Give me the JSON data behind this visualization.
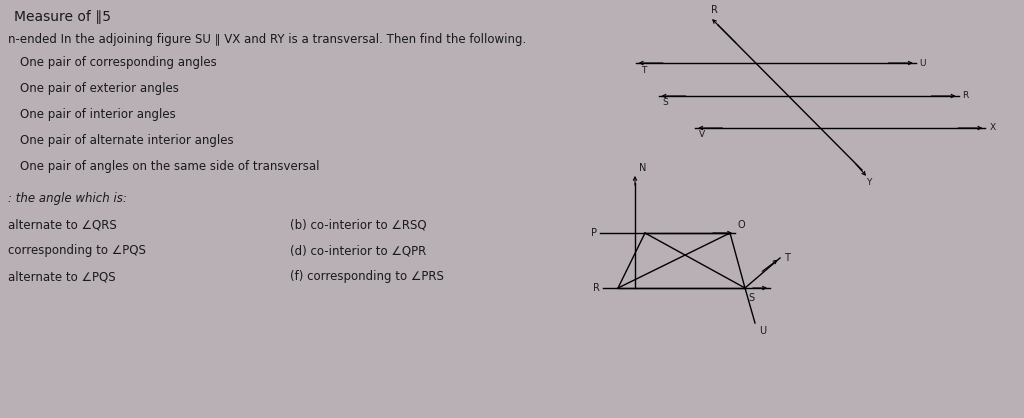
{
  "bg_color": "#b8b0b4",
  "title": "Measure of ∥5",
  "title_fontsize": 10,
  "line1": "n-ended In the adjoining figure SU ∥ VX and RY is a transversal. Then find the following.",
  "line1_fontsize": 8.5,
  "items": [
    "One pair of corresponding angles",
    "One pair of exterior angles",
    "One pair of interior angles",
    "One pair of alternate interior angles",
    "One pair of angles on the same side of transversal"
  ],
  "items_fontsize": 8.5,
  "subheader": ": the angle which is:",
  "subheader_fontsize": 8.5,
  "col1": [
    "alternate to ∠QRS",
    "corresponding to ∠PQS",
    "alternate to ∠PQS"
  ],
  "col2": [
    "(b) co-interior to ∠RSQ",
    "(d) co-interior to ∠QPR",
    "(f) corresponding to ∠PRS"
  ],
  "col_fontsize": 8.5,
  "text_color": "#1a1a1a"
}
